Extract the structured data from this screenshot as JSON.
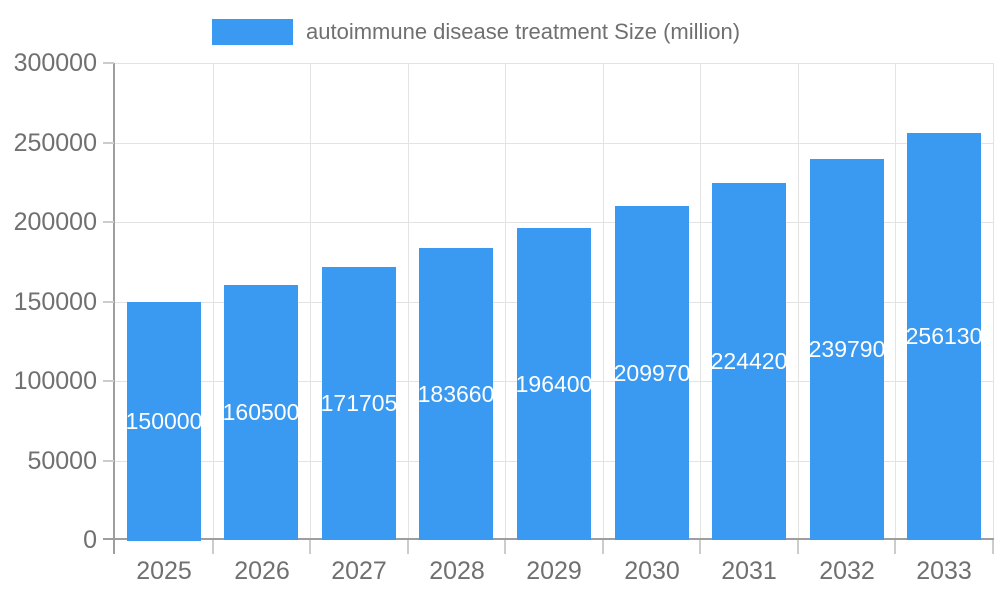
{
  "chart_data": {
    "type": "bar",
    "legend": "autoimmune disease treatment Size (million)",
    "categories": [
      "2025",
      "2026",
      "2027",
      "2028",
      "2029",
      "2030",
      "2031",
      "2032",
      "2033"
    ],
    "values": [
      150000,
      160500,
      171705,
      183660,
      196400,
      209970,
      224420,
      239790,
      256130
    ],
    "yticks": [
      "0",
      "50000",
      "100000",
      "150000",
      "200000",
      "250000",
      "300000"
    ],
    "ylim": [
      0,
      300000
    ],
    "ytick_step": 50000,
    "grid": true,
    "legend_position": "top",
    "colors": {
      "bar": "#3a99f0",
      "bar_label": "#ffffff",
      "axis_text": "#707070",
      "axis_line": "#9e9e9e",
      "tick_line": "#cccccc",
      "gridline": "#e3e3e3",
      "background": "#ffffff"
    }
  }
}
